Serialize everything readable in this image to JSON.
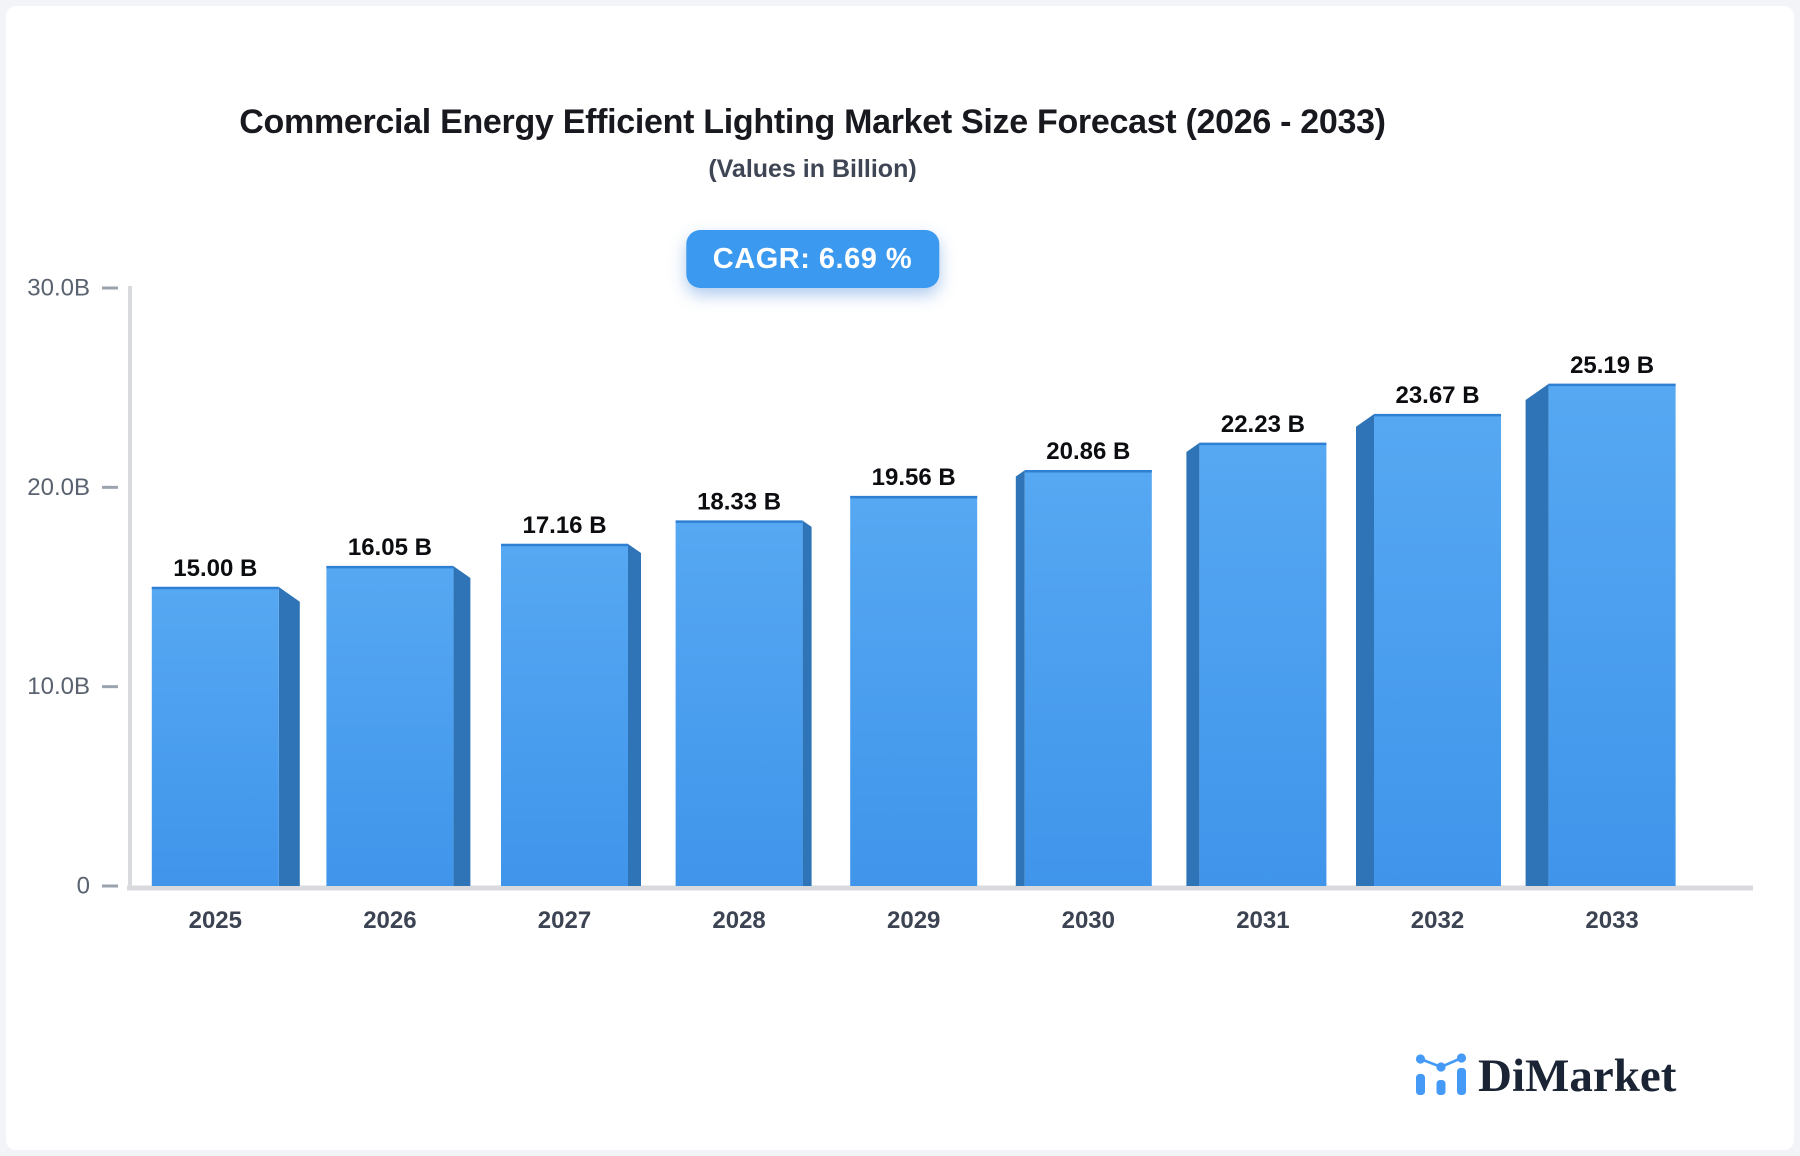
{
  "header": {
    "title": "Commercial Energy Efficient Lighting Market Size Forecast (2026 - 2033)",
    "subtitle": "(Values in Billion)",
    "cagr_label": "CAGR: 6.69 %"
  },
  "chart_data": {
    "type": "bar",
    "title": "Commercial Energy Efficient Lighting Market Size Forecast (2026 - 2033)",
    "subtitle": "(Values in Billion)",
    "annotation": "CAGR: 6.69 %",
    "categories": [
      "2025",
      "2026",
      "2027",
      "2028",
      "2029",
      "2030",
      "2031",
      "2032",
      "2033"
    ],
    "values": [
      15.0,
      16.05,
      17.16,
      18.33,
      19.56,
      20.86,
      22.23,
      23.67,
      25.19
    ],
    "value_labels": [
      "15.00 B",
      "16.05 B",
      "17.16 B",
      "18.33 B",
      "19.56 B",
      "20.86 B",
      "22.23 B",
      "23.67 B",
      "25.19 B"
    ],
    "unit": "Billion",
    "xlabel": "",
    "ylabel": "",
    "ylim": [
      0,
      30
    ],
    "y_ticks": {
      "values": [
        30,
        20,
        10,
        0
      ],
      "labels": [
        "30.0B",
        "20.0B",
        "10.0B",
        "0"
      ]
    },
    "grid": false,
    "legend": false,
    "style": "3d-perspective-bars",
    "colors": {
      "bar_face_top": "#56a8f2",
      "bar_face_bottom": "#4095eb",
      "bar_side": "#2e74b6",
      "bar_top_edge": "#2f80d2",
      "axis_line": "#d8dade",
      "tick_mark": "#9aa3ae",
      "tick_label": "#5a6270",
      "year_label": "#3c4352",
      "value_label": "#0b0d10",
      "badge_bg": "#3b99f0",
      "badge_text": "#ffffff"
    }
  },
  "branding": {
    "logo_text": "DiMarket",
    "logo_icon": "bar-line-chart-icon",
    "logo_text_color": "#1b2434",
    "logo_icon_color": "#449af6"
  }
}
